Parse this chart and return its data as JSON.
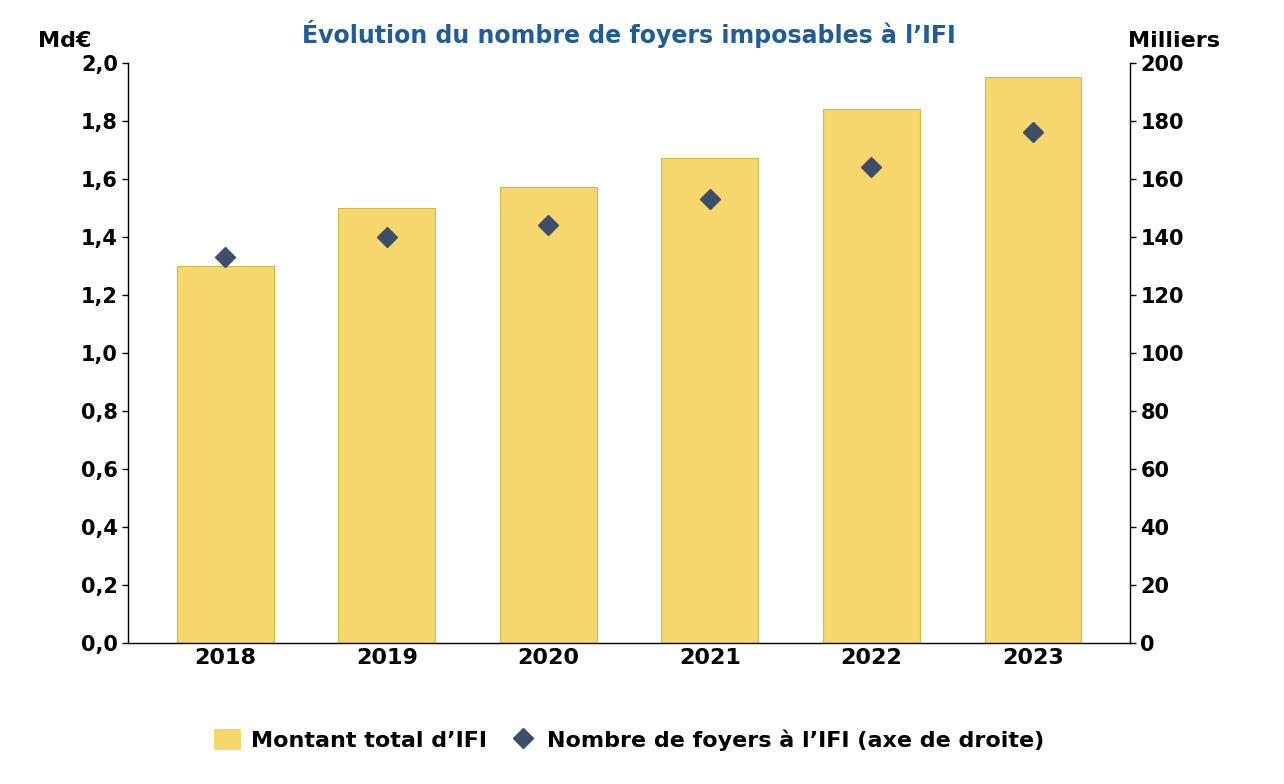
{
  "years": [
    "2018",
    "2019",
    "2020",
    "2021",
    "2022",
    "2023"
  ],
  "bar_values": [
    1.3,
    1.5,
    1.57,
    1.67,
    1.84,
    1.95
  ],
  "line_values": [
    133,
    140,
    144,
    153,
    164,
    176
  ],
  "bar_color": "#F5D76E",
  "bar_edgecolor": "#D4B84A",
  "line_color": "#3D4D6A",
  "marker_color": "#3D4D6A",
  "title": "Évolution du nombre de foyers imposables à l’IFI",
  "title_color": "#1F5C99",
  "ylabel_left": "Md€",
  "ylabel_right": "Milliers",
  "ylim_left": [
    0,
    2.0
  ],
  "ylim_right": [
    0,
    200
  ],
  "yticks_left": [
    0.0,
    0.2,
    0.4,
    0.6,
    0.8,
    1.0,
    1.2,
    1.4,
    1.6,
    1.8,
    2.0
  ],
  "yticks_right": [
    0,
    20,
    40,
    60,
    80,
    100,
    120,
    140,
    160,
    180,
    200
  ],
  "legend_bar_label": "Montant total d’IFI",
  "legend_line_label": "Nombre de foyers à l’IFI (axe de droite)",
  "background_color": "#FFFFFF",
  "tick_color": "#000000",
  "spine_color": "#000000"
}
